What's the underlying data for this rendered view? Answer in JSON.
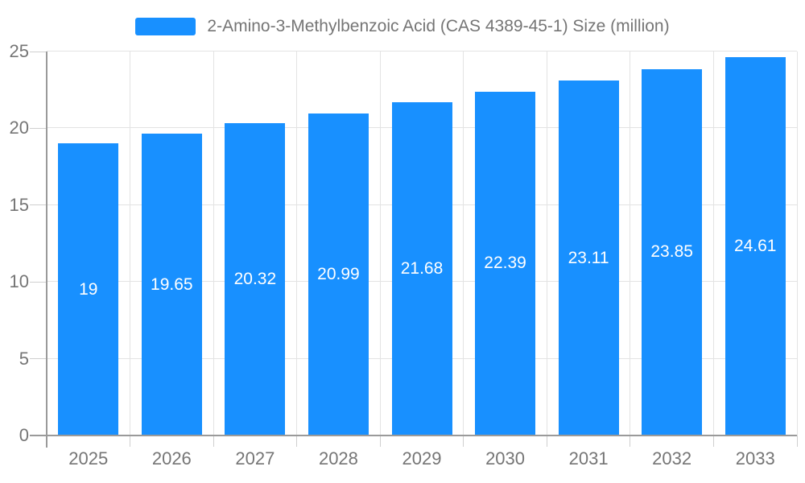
{
  "chart_data": {
    "type": "bar",
    "title": "2-Amino-3-Methylbenzoic Acid (CAS 4389-45-1) Size (million)",
    "legend_position": "top",
    "categories": [
      "2025",
      "2026",
      "2027",
      "2028",
      "2029",
      "2030",
      "2031",
      "2032",
      "2033"
    ],
    "values": [
      19,
      19.65,
      20.32,
      20.99,
      21.68,
      22.39,
      23.11,
      23.85,
      24.61
    ],
    "value_labels": [
      "19",
      "19.65",
      "20.32",
      "20.99",
      "21.68",
      "22.39",
      "23.11",
      "23.85",
      "24.61"
    ],
    "xlabel": "",
    "ylabel": "",
    "ylim": [
      0,
      25
    ],
    "yticks": [
      0,
      5,
      10,
      15,
      20,
      25
    ],
    "grid": true,
    "colors": {
      "bar": "#1890ff",
      "bar_label": "#ffffff",
      "axis_text": "#757575",
      "grid_line": "#e3e3e3",
      "axis_line": "#9a9a9a",
      "tick": "#cfcfcf",
      "background": "#ffffff"
    }
  }
}
